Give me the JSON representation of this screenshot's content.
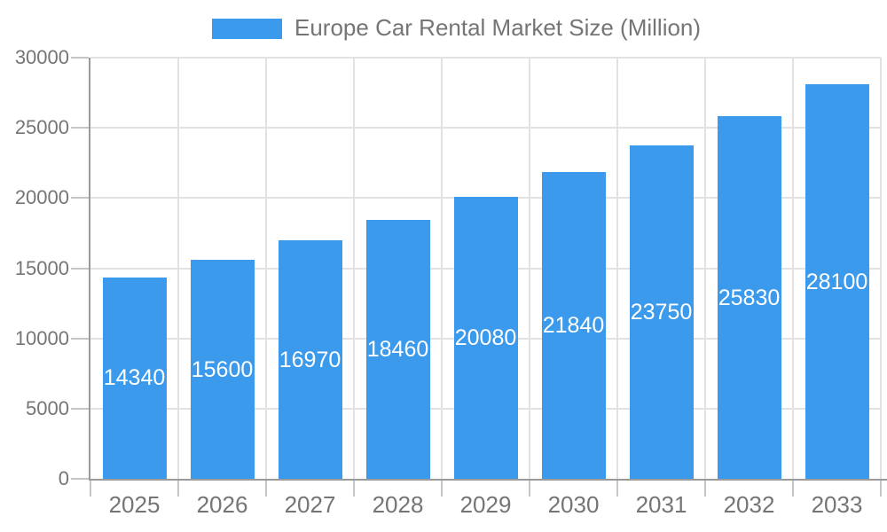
{
  "legend": {
    "label": "Europe Car Rental Market Size (Million)",
    "swatch_color": "#3b9aec"
  },
  "colors": {
    "bar": "#3b9aec",
    "bar_label_text": "#ffffff",
    "axis_text": "#757575",
    "gridline": "#e2e2e2",
    "axis_line": "#9a9a9a",
    "tick": "#c6c6c6",
    "background": "#ffffff"
  },
  "chart_data": {
    "type": "bar",
    "title": "Europe Car Rental Market Size (Million)",
    "categories": [
      "2025",
      "2026",
      "2027",
      "2028",
      "2029",
      "2030",
      "2031",
      "2032",
      "2033"
    ],
    "values": [
      14340,
      15600,
      16970,
      18460,
      20080,
      21840,
      23750,
      25830,
      28100
    ],
    "series_name": "Europe Car Rental Market Size (Million)",
    "xlabel": "",
    "ylabel": "",
    "ylim": [
      0,
      30000
    ],
    "yticks": [
      0,
      5000,
      10000,
      15000,
      20000,
      25000,
      30000
    ],
    "grid": true,
    "legend_position": "top",
    "bar_labels_visible": true
  }
}
